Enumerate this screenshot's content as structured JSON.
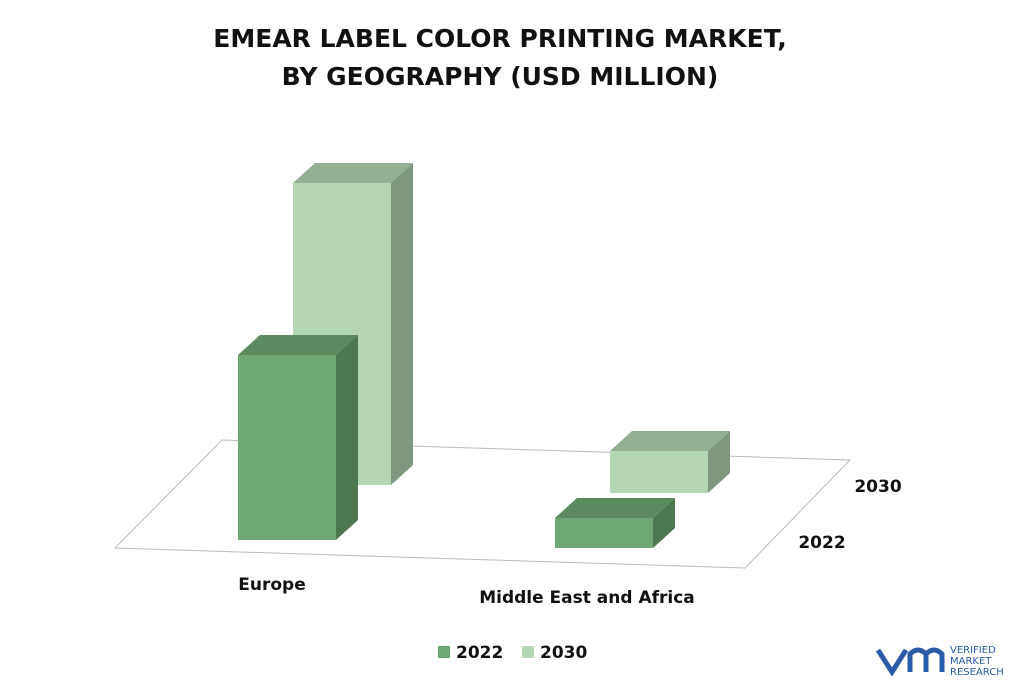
{
  "chart_data": {
    "type": "bar3d",
    "title": [
      "EMEAR LABEL COLOR PRINTING MARKET,",
      "BY GEOGRAPHY (USD MILLION)"
    ],
    "categories": [
      "Europe",
      "Middle East and Africa"
    ],
    "series": [
      {
        "name": "2022",
        "color": "#6fa874",
        "values": [
          185,
          30
        ]
      },
      {
        "name": "2030",
        "color": "#b5d6b5",
        "values": [
          302,
          42
        ]
      }
    ],
    "legend": "bottom"
  },
  "logo": {
    "brand": [
      "VERIFIED",
      "MARKET",
      "RESEARCH"
    ]
  }
}
